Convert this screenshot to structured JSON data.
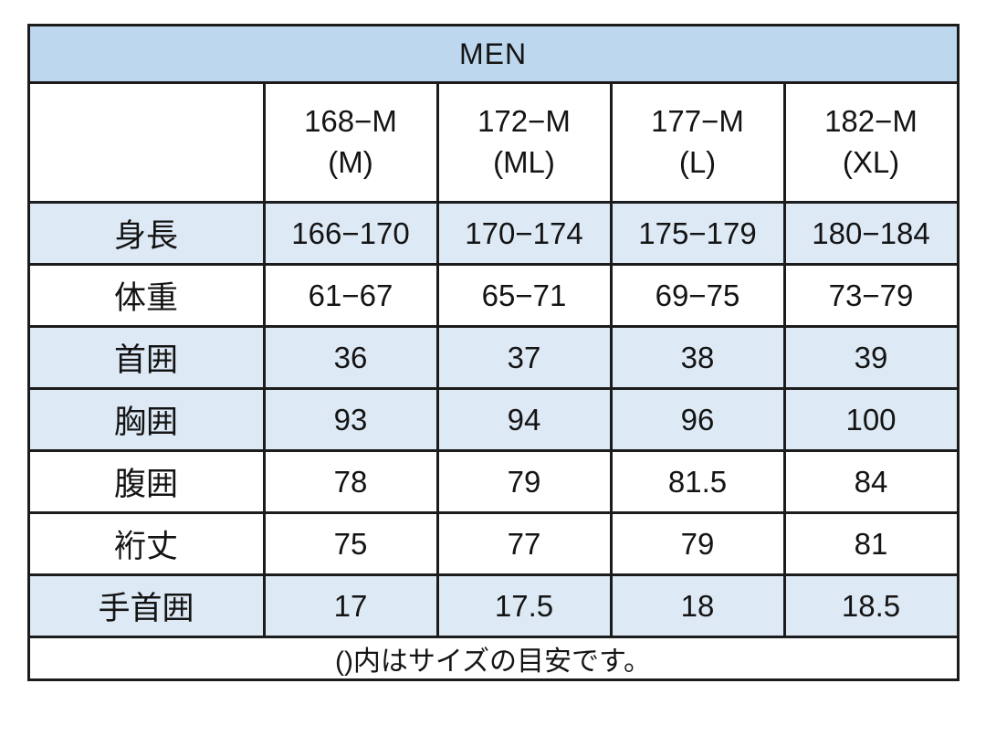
{
  "table": {
    "title": "MEN",
    "corner": "",
    "columns": [
      {
        "size": "168−M",
        "paren": "(M)"
      },
      {
        "size": "172−M",
        "paren": "(ML)"
      },
      {
        "size": "177−M",
        "paren": "(L)"
      },
      {
        "size": "182−M",
        "paren": "(XL)"
      }
    ],
    "rows": [
      {
        "label": "身長",
        "values": [
          "166−170",
          "170−174",
          "175−179",
          "180−184"
        ]
      },
      {
        "label": "体重",
        "values": [
          "61−67",
          "65−71",
          "69−75",
          "73−79"
        ]
      },
      {
        "label": "首囲",
        "values": [
          "36",
          "37",
          "38",
          "39"
        ]
      },
      {
        "label": "胸囲",
        "values": [
          "93",
          "94",
          "96",
          "100"
        ]
      },
      {
        "label": "腹囲",
        "values": [
          "78",
          "79",
          "81.5",
          "84"
        ]
      },
      {
        "label": "裄丈",
        "values": [
          "75",
          "77",
          "79",
          "81"
        ]
      },
      {
        "label": "手首囲",
        "values": [
          "17",
          "17.5",
          "18",
          "18.5"
        ]
      }
    ],
    "footnote": "()内はサイズの目安です。",
    "colors": {
      "title_blue": "#bdd7ee",
      "row_blue": "#dde9f5",
      "border": "#1c1c1c",
      "text": "#141414"
    }
  },
  "chart_data": {
    "type": "table",
    "title": "MEN",
    "columns": [
      "",
      "168-M (M)",
      "172-M (ML)",
      "177-M (L)",
      "182-M (XL)"
    ],
    "rows": [
      [
        "身長",
        "166-170",
        "170-174",
        "175-179",
        "180-184"
      ],
      [
        "体重",
        "61-67",
        "65-71",
        "69-75",
        "73-79"
      ],
      [
        "首囲",
        "36",
        "37",
        "38",
        "39"
      ],
      [
        "胸囲",
        "93",
        "94",
        "96",
        "100"
      ],
      [
        "腹囲",
        "78",
        "79",
        "81.5",
        "84"
      ],
      [
        "裄丈",
        "75",
        "77",
        "79",
        "81"
      ],
      [
        "手首囲",
        "17",
        "17.5",
        "18",
        "18.5"
      ]
    ],
    "shaded_rows": [
      "身長",
      "首囲",
      "胸囲",
      "手首囲"
    ],
    "footnote": "()内はサイズの目安です。",
    "layout": {
      "grid": true,
      "title_position": "top-merged-row",
      "footnote_position": "bottom-merged-row"
    }
  }
}
